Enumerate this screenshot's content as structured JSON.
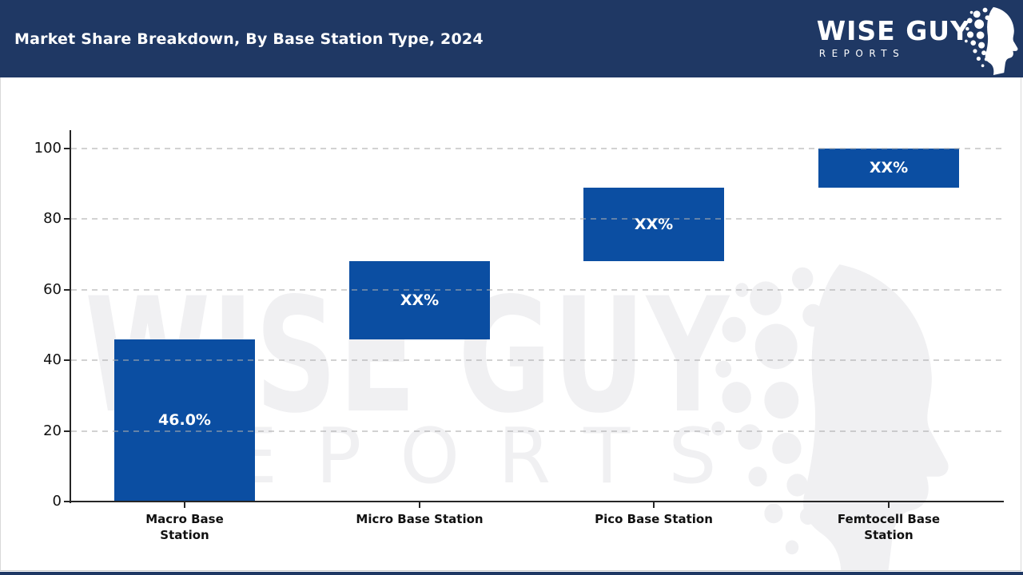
{
  "header": {
    "title": "Market Share Breakdown, By Base Station Type, 2024",
    "logo": {
      "line1": "WISE GUY",
      "line2": "REPORTS"
    }
  },
  "watermark": {
    "line1": "WISE GUY",
    "line2": "REPORTS"
  },
  "chart_data": {
    "type": "bar",
    "variant": "waterfall",
    "title": "Market Share Breakdown, By Base Station Type, 2024",
    "categories": [
      "Macro Base Station",
      "Micro Base Station",
      "Pico Base Station",
      "Femtocell Base Station"
    ],
    "segments": [
      {
        "category": "Macro Base Station",
        "start": 0,
        "end": 46,
        "label": "46.0%"
      },
      {
        "category": "Micro Base Station",
        "start": 46,
        "end": 68,
        "label": "XX%"
      },
      {
        "category": "Pico Base Station",
        "start": 68,
        "end": 89,
        "label": "XX%"
      },
      {
        "category": "Femtocell Base Station",
        "start": 89,
        "end": 100,
        "label": "XX%"
      }
    ],
    "ylim": [
      0,
      100
    ],
    "yticks": [
      0,
      20,
      40,
      60,
      80,
      100
    ],
    "xlabel": "",
    "ylabel": "",
    "grid": "horizontal-dashed",
    "legend": "none"
  },
  "colors": {
    "header_bg": "#1F3864",
    "footer_bg": "#1F3864",
    "bar": "#0B4EA2",
    "bar_label": "#FFFFFF",
    "axis": "#262626",
    "gridline": "#ACACAC",
    "watermark": "#F0F0F2",
    "background": "#FFFFFF"
  }
}
